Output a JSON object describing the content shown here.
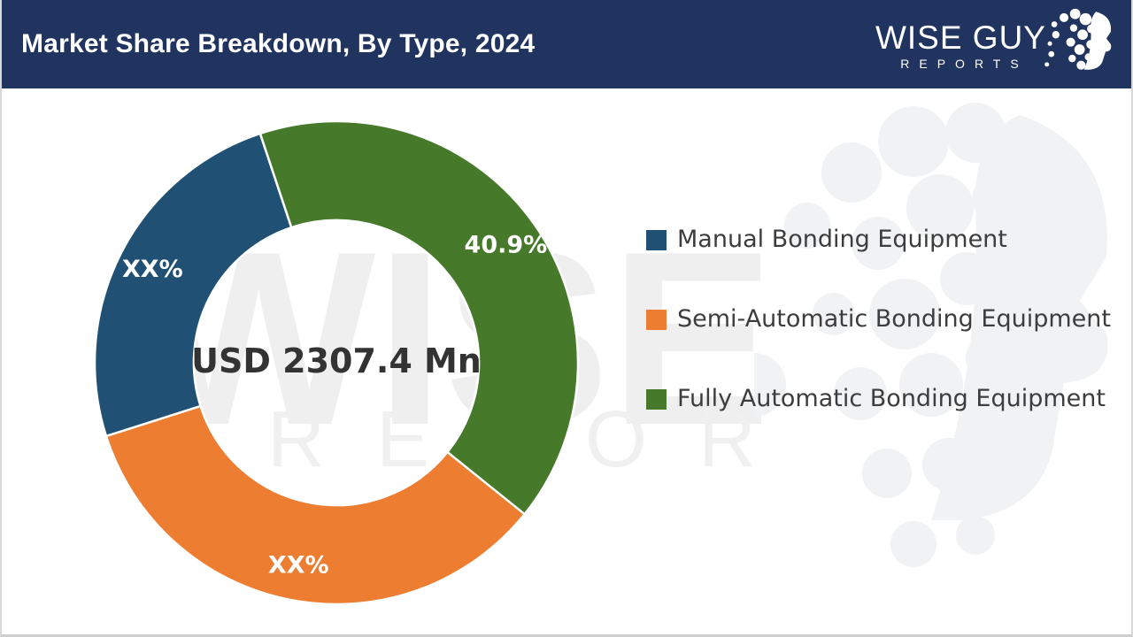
{
  "header": {
    "title": "Market Share Breakdown, By Type, 2024",
    "bg_color": "#213460",
    "logo": {
      "line1": "WISE GUY",
      "line2": "REPORTS"
    }
  },
  "watermark": {
    "line1": "WISE GUY",
    "line2": "REPORTS"
  },
  "chart_data": {
    "type": "pie",
    "donut": true,
    "inner_radius_ratio": 0.59,
    "title": "Market Share Breakdown, By Type, 2024",
    "center_label": "USD 2307.4 Mn",
    "start_angle_deg": -18.4,
    "slices": [
      {
        "name": "Fully Automatic Bonding Equipment",
        "label": "40.9%",
        "value_pct": 40.9,
        "color": "#47792B"
      },
      {
        "name": "Semi-Automatic Bonding Equipment",
        "label": "XX%",
        "value_pct": 34.3,
        "color": "#ED7D31"
      },
      {
        "name": "Manual Bonding Equipment",
        "label": "XX%",
        "value_pct": 24.8,
        "color": "#205175"
      }
    ],
    "legend_position": "right",
    "legend": [
      {
        "label": "Manual Bonding Equipment",
        "color": "#205175"
      },
      {
        "label": "Semi-Automatic Bonding Equipment",
        "color": "#ED7D31"
      },
      {
        "label": "Fully Automatic Bonding Equipment",
        "color": "#47792B"
      }
    ]
  }
}
